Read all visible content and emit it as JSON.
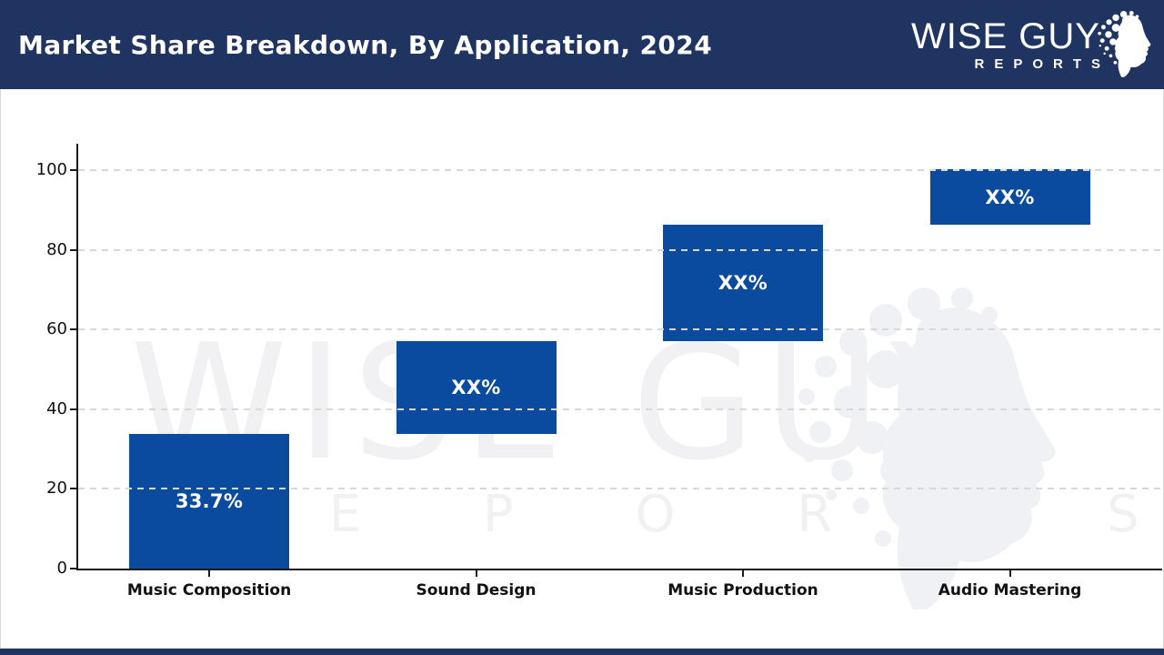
{
  "header": {
    "title": "Market Share Breakdown, By Application, 2024",
    "logo": {
      "line1": "WISE GUY",
      "line2": "REPORTS"
    }
  },
  "watermark": {
    "line1": "WISE GUY",
    "line2": "R E P O R T S"
  },
  "colors": {
    "header_bg": "#1f3461",
    "footer_bg": "#1f3461",
    "bar_fill": "#0a4a9f",
    "bar_label": "#ffffff",
    "grid_line": "#d8d8d8",
    "axis_line": "#1a1a1a",
    "watermark": "#f1f1f3",
    "border": "#d9d9d9"
  },
  "chart_data": {
    "type": "bar",
    "subtype": "waterfall",
    "title": "Market Share Breakdown, By Application, 2024",
    "categories": [
      "Music Composition",
      "Sound Design",
      "Music Production",
      "Audio Mastering"
    ],
    "segments": [
      {
        "category": "Music Composition",
        "start": 0,
        "end": 33.7,
        "label": "33.7%"
      },
      {
        "category": "Sound Design",
        "start": 33.7,
        "end": 57.0,
        "label": "XX%"
      },
      {
        "category": "Music Production",
        "start": 57.0,
        "end": 86.2,
        "label": "XX%"
      },
      {
        "category": "Audio Mastering",
        "start": 86.2,
        "end": 100.3,
        "label": "XX%"
      }
    ],
    "xlabel": "",
    "ylabel": "",
    "yticks": [
      0,
      20,
      40,
      60,
      80,
      100
    ],
    "ylim": [
      0,
      105
    ],
    "grid": "horizontal-dashed",
    "legend": "none"
  }
}
